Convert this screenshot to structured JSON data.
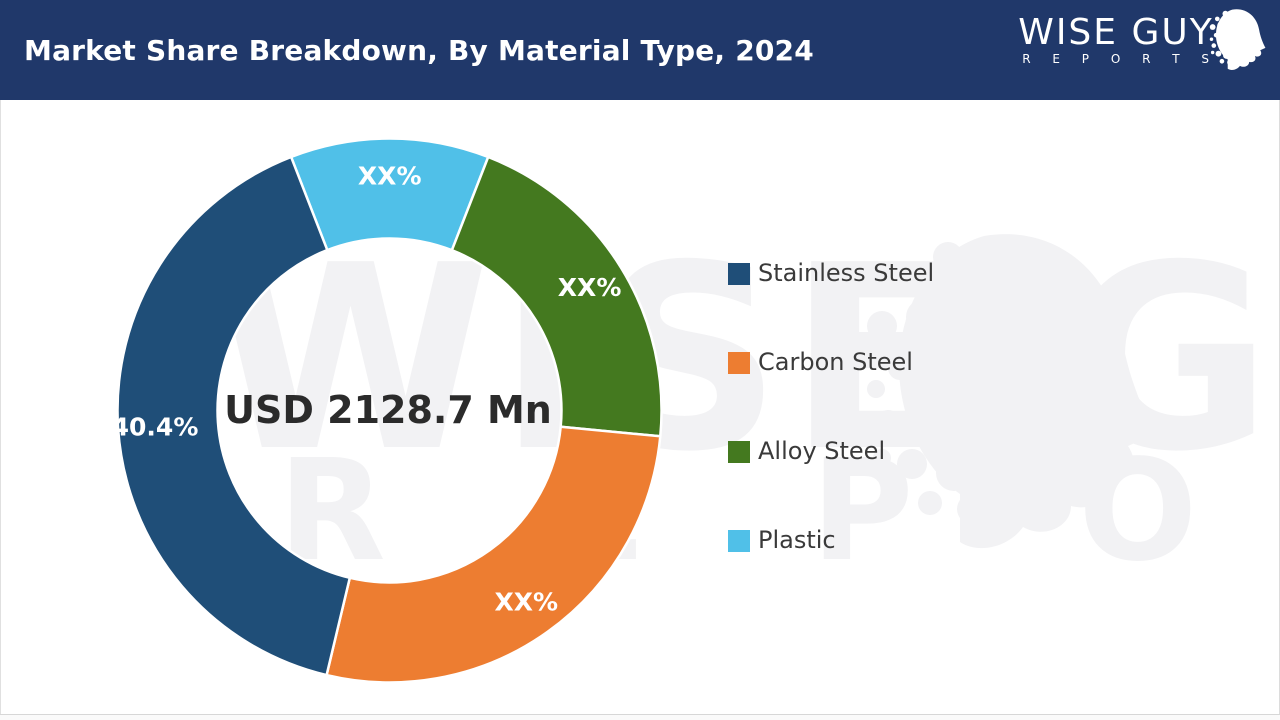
{
  "header": {
    "title": "Market Share Breakdown, By Material Type, 2024",
    "background_color": "#20386a",
    "logo": {
      "line1": "WISE GUY",
      "line2": "R E P O R T S"
    }
  },
  "watermark": {
    "line1": "WISE GUY",
    "line2": "R E P O R T S"
  },
  "chart_data": {
    "type": "donut",
    "title": "Market Share Breakdown, By Material Type, 2024",
    "center_label": "USD 2128.7 Mn",
    "units": "USD Mn",
    "start_angle_deg": -21.2,
    "segments_clockwise_from_top": [
      {
        "name": "Plastic",
        "color": "#50c0e8",
        "pct": 11.8,
        "slice_label": "XX%"
      },
      {
        "name": "Alloy Steel",
        "color": "#44791f",
        "pct": 20.6,
        "slice_label": "XX%"
      },
      {
        "name": "Carbon Steel",
        "color": "#ed7d31",
        "pct": 27.2,
        "slice_label": "XX%"
      },
      {
        "name": "Stainless Steel",
        "color": "#1f4e78",
        "pct": 40.4,
        "slice_label": "40.4%"
      }
    ],
    "legend": [
      {
        "label": "Stainless Steel",
        "color": "#1f4e78"
      },
      {
        "label": "Carbon Steel",
        "color": "#ed7d31"
      },
      {
        "label": "Alloy Steel",
        "color": "#44791f"
      },
      {
        "label": "Plastic",
        "color": "#50c0e8"
      }
    ],
    "legend_position": "right"
  }
}
